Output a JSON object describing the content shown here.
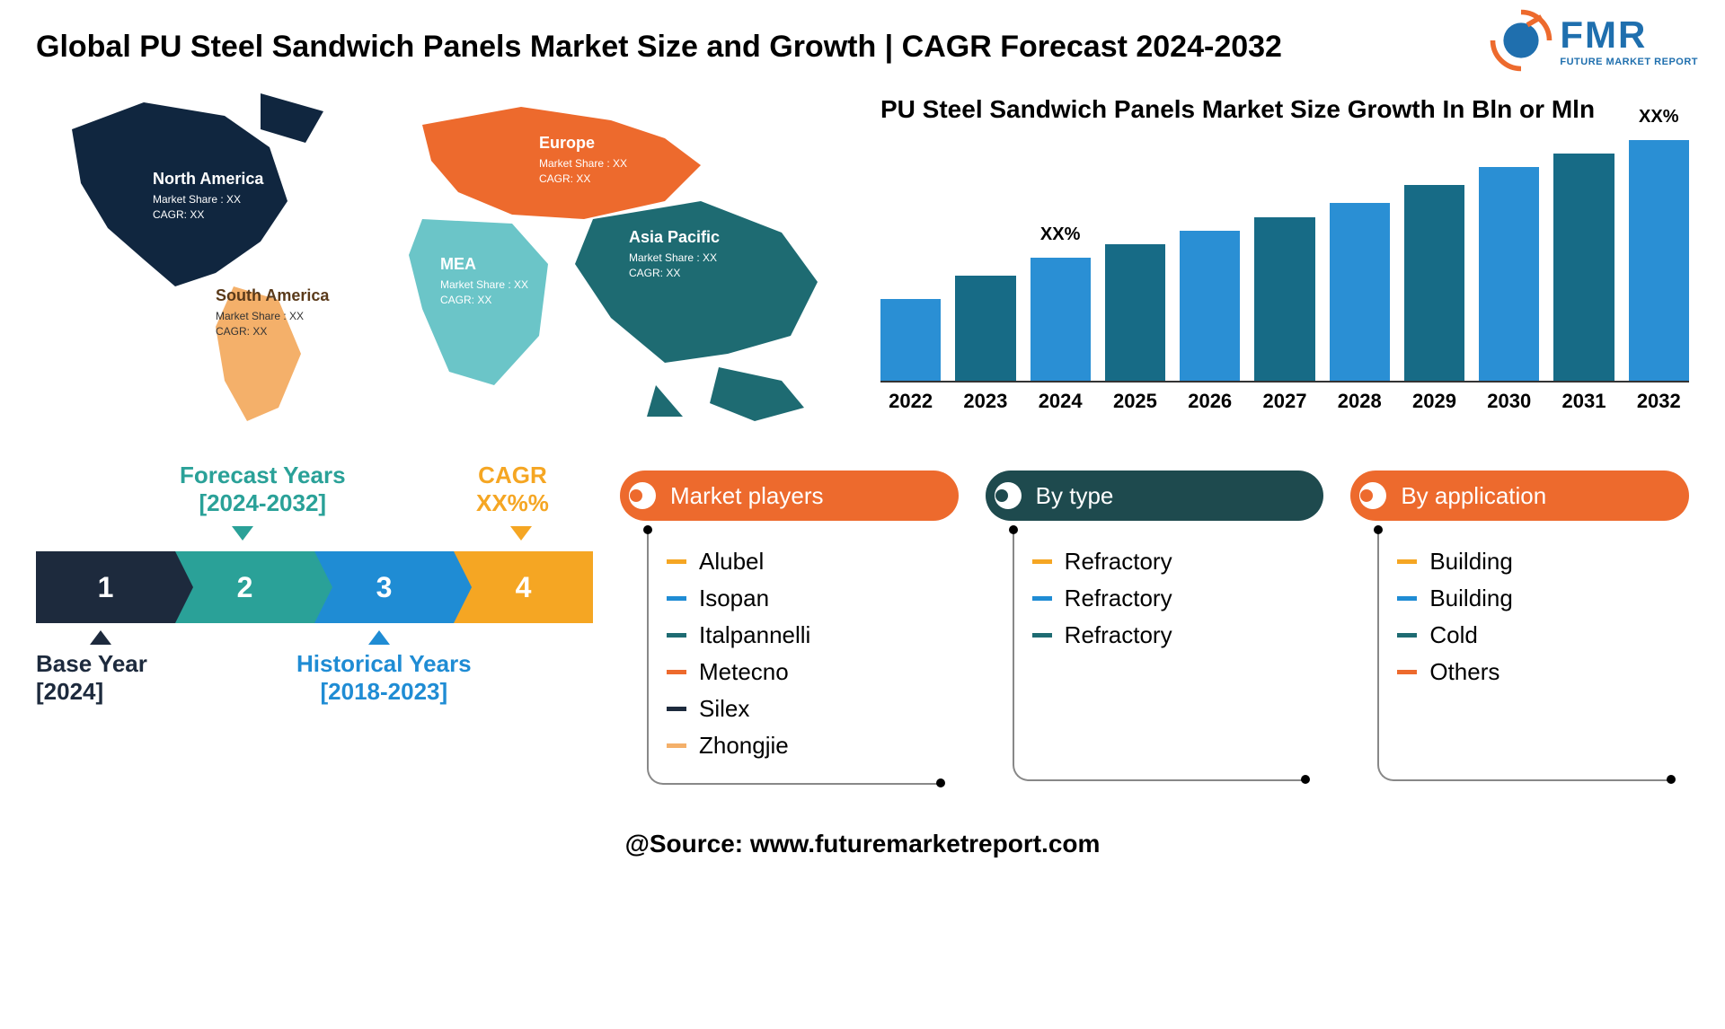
{
  "title": "Global PU Steel Sandwich Panels Market Size and Growth | CAGR Forecast 2024-2032",
  "logo": {
    "main": "FMR",
    "sub": "FUTURE MARKET REPORT"
  },
  "map": {
    "regions": [
      {
        "name": "North America",
        "share": "Market Share : XX",
        "cagr": "CAGR: XX",
        "color": "#10263f"
      },
      {
        "name": "South America",
        "share": "Market Share : XX",
        "cagr": "CAGR: XX",
        "color": "#f4b06a"
      },
      {
        "name": "Europe",
        "share": "Market Share : XX",
        "cagr": "CAGR: XX",
        "color": "#ed6a2d"
      },
      {
        "name": "MEA",
        "share": "Market Share : XX",
        "cagr": "CAGR: XX",
        "color": "#6bc5c8"
      },
      {
        "name": "Asia Pacific",
        "share": "Market Share : XX",
        "cagr": "CAGR: XX",
        "color": "#1e6b72"
      }
    ]
  },
  "chart": {
    "title": "PU Steel Sandwich Panels Market Size Growth In Bln or Mln",
    "years": [
      "2022",
      "2023",
      "2024",
      "2025",
      "2026",
      "2027",
      "2028",
      "2029",
      "2030",
      "2031",
      "2032"
    ],
    "values": [
      90,
      115,
      135,
      150,
      165,
      180,
      195,
      215,
      235,
      250,
      265
    ],
    "max": 265,
    "annotations": [
      {
        "i": 2,
        "label": "XX%"
      },
      {
        "i": 10,
        "label": "XX%"
      }
    ],
    "colors_alt": [
      "#2a8fd4",
      "#176b86"
    ],
    "border_color": "#333333"
  },
  "timeline": {
    "segments": [
      {
        "n": "1",
        "color": "#1d2a3d"
      },
      {
        "n": "2",
        "color": "#2aa198"
      },
      {
        "n": "3",
        "color": "#1f8cd4"
      },
      {
        "n": "4",
        "color": "#f5a623"
      }
    ],
    "labels": {
      "base": {
        "text": "Base Year",
        "sub": "[2024]",
        "color": "#1d2a3d"
      },
      "forecast": {
        "text": "Forecast Years",
        "sub": "[2024-2032]",
        "color": "#2aa198"
      },
      "hist": {
        "text": "Historical Years",
        "sub": "[2018-2023]",
        "color": "#1f8cd4"
      },
      "cagr": {
        "text": "CAGR",
        "sub": "XX%%",
        "color": "#f5a623"
      }
    }
  },
  "categories": [
    {
      "title": "Market players",
      "pill_color": "#ed6a2d",
      "items": [
        {
          "label": "Alubel",
          "bullet": "#f5a623"
        },
        {
          "label": "Isopan",
          "bullet": "#1f8cd4"
        },
        {
          "label": "Italpannelli",
          "bullet": "#1e6b72"
        },
        {
          "label": "Metecno",
          "bullet": "#ed6a2d"
        },
        {
          "label": "Silex",
          "bullet": "#1d2a3d"
        },
        {
          "label": "Zhongjie",
          "bullet": "#f4b06a"
        }
      ]
    },
    {
      "title": "By type",
      "pill_color": "#1e4a4e",
      "items": [
        {
          "label": "Refractory",
          "bullet": "#f5a623"
        },
        {
          "label": "Refractory",
          "bullet": "#1f8cd4"
        },
        {
          "label": "Refractory",
          "bullet": "#1e6b72"
        }
      ]
    },
    {
      "title": "By application",
      "pill_color": "#ed6a2d",
      "items": [
        {
          "label": "Building",
          "bullet": "#f5a623"
        },
        {
          "label": "Building",
          "bullet": "#1f8cd4"
        },
        {
          "label": "Cold",
          "bullet": "#1e6b72"
        },
        {
          "label": "Others",
          "bullet": "#ed6a2d"
        }
      ]
    }
  ],
  "source": "@Source: www.futuremarketreport.com"
}
